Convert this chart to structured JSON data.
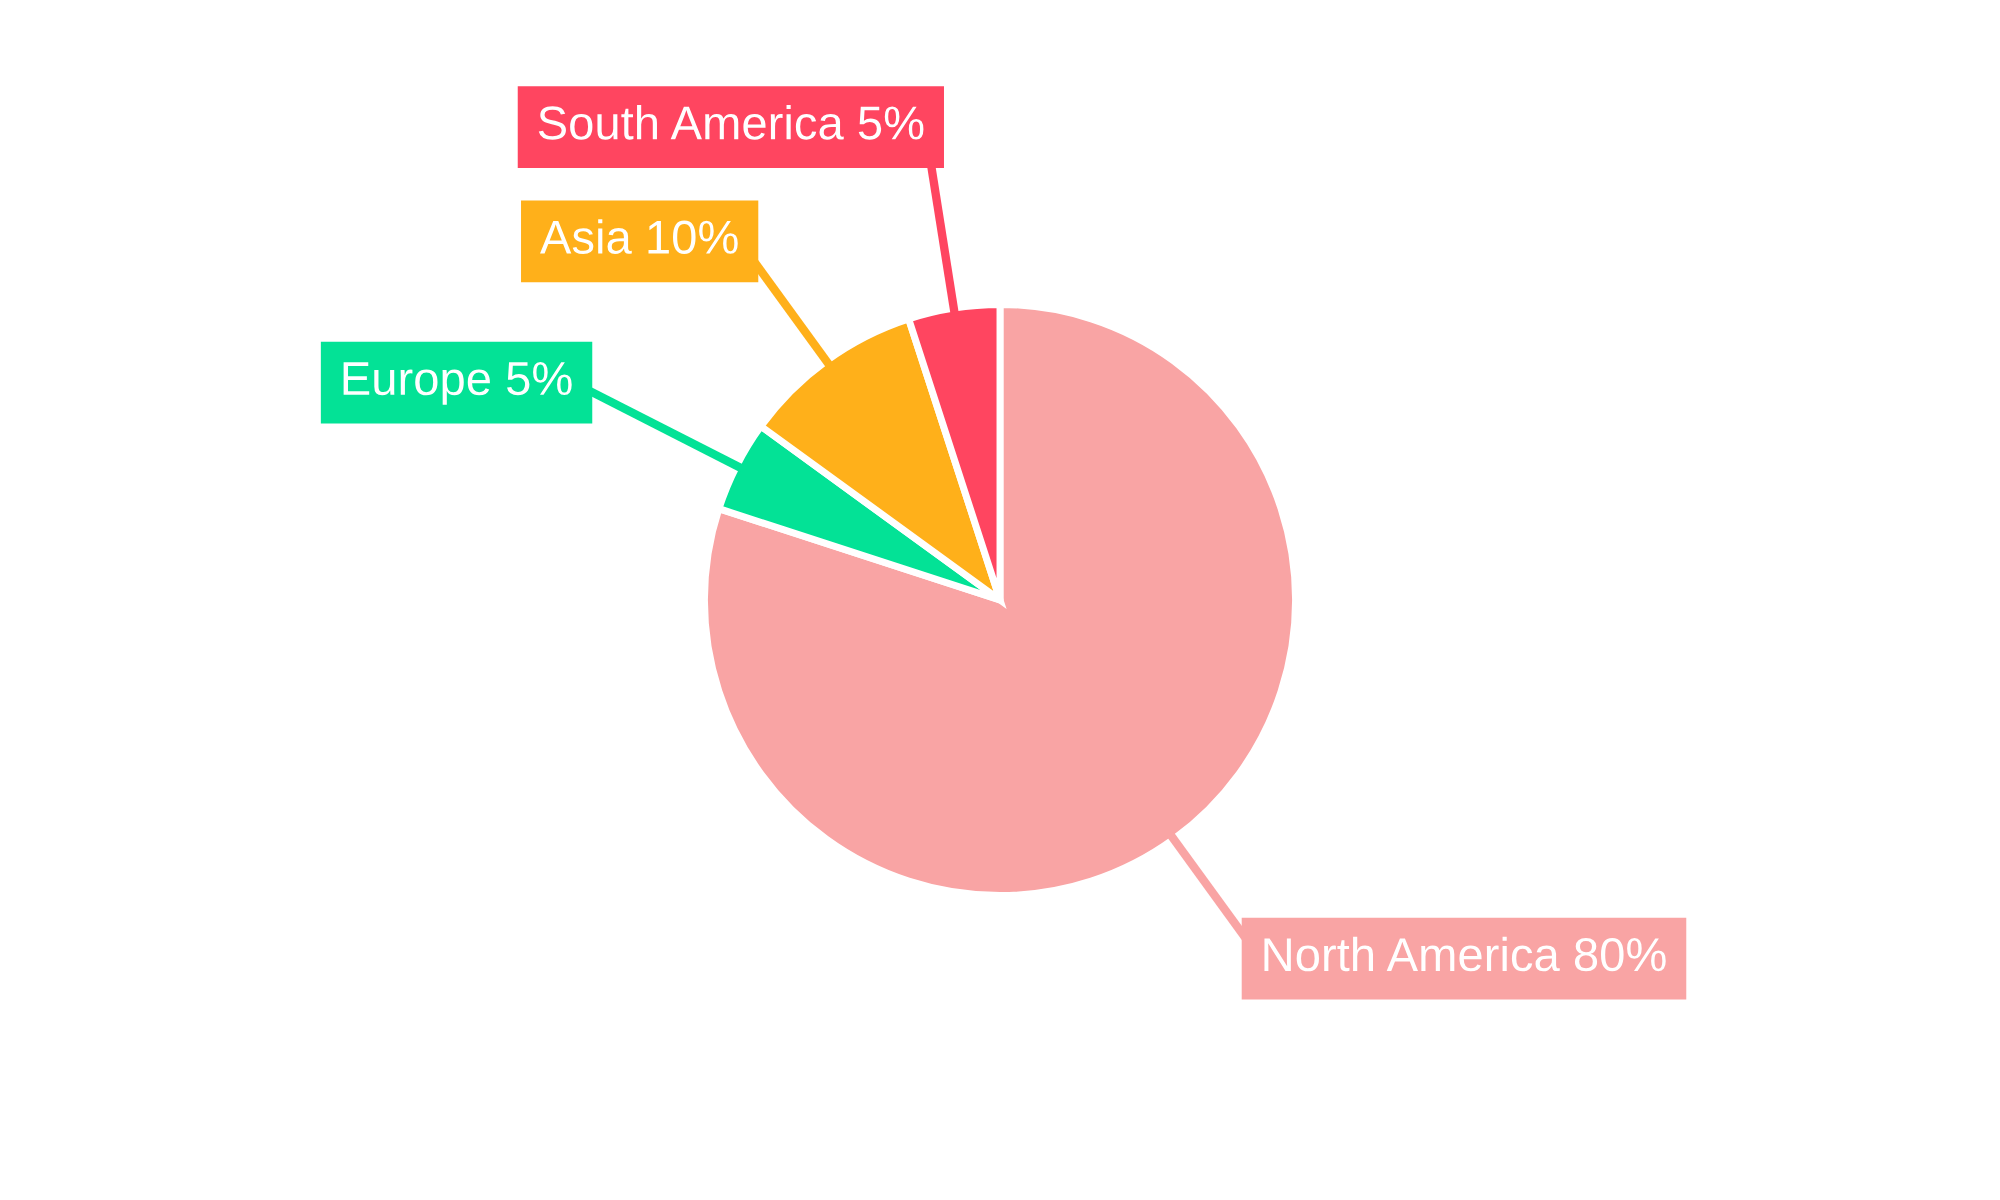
{
  "chart_data": {
    "type": "pie",
    "categories": [
      "North America",
      "Europe",
      "Asia",
      "South America"
    ],
    "values": [
      80,
      5,
      10,
      5
    ],
    "value_labels": [
      "80%",
      "5%",
      "10%",
      "5%"
    ],
    "colors": [
      "#f9a4a4",
      "#03e296",
      "#ffb01a",
      "#ff4560"
    ],
    "legend": false
  }
}
